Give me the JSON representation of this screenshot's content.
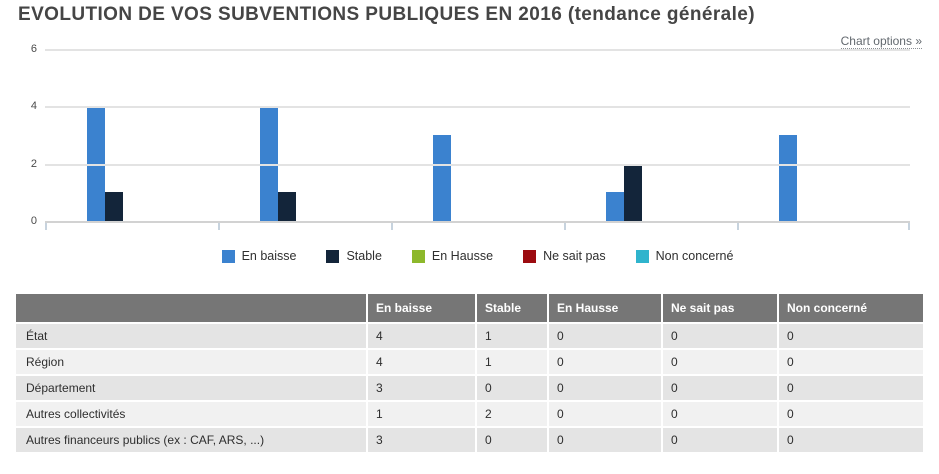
{
  "header": {
    "title": "EVOLUTION DE VOS SUBVENTIONS PUBLIQUES EN 2016 (tendance générale)",
    "chart_options_label": "Chart options »"
  },
  "colors": {
    "en_baisse": "#3b82cf",
    "stable": "#13253a",
    "en_hausse": "#8db82b",
    "ne_sait_pas": "#9c0b10",
    "non_concerne": "#2fb4cd",
    "table_header_bg": "#767676",
    "row_dark_bg": "#e4e4e4",
    "row_light_bg": "#f1f1f1"
  },
  "chart_data": {
    "type": "bar",
    "title": "EVOLUTION DE VOS SUBVENTIONS PUBLIQUES EN 2016 (tendance générale)",
    "categories": [
      "État",
      "Région",
      "Département",
      "Autres collectivités",
      "Autres financeurs publics (ex : CAF, ARS, ...)"
    ],
    "series": [
      {
        "name": "En baisse",
        "color": "#3b82cf",
        "values": [
          4,
          4,
          3,
          1,
          3
        ]
      },
      {
        "name": "Stable",
        "color": "#13253a",
        "values": [
          1,
          1,
          0,
          2,
          0
        ]
      },
      {
        "name": "En Hausse",
        "color": "#8db82b",
        "values": [
          0,
          0,
          0,
          0,
          0
        ]
      },
      {
        "name": "Ne sait pas",
        "color": "#9c0b10",
        "values": [
          0,
          0,
          0,
          0,
          0
        ]
      },
      {
        "name": "Non concerné",
        "color": "#2fb4cd",
        "values": [
          0,
          0,
          0,
          0,
          0
        ]
      }
    ],
    "ylim": [
      0,
      6
    ],
    "yticks": [
      0,
      2,
      4,
      6
    ],
    "grid": true,
    "legend_position": "bottom",
    "xlabel": "",
    "ylabel": ""
  },
  "table": {
    "columns": [
      "",
      "En baisse",
      "Stable",
      "En Hausse",
      "Ne sait pas",
      "Non concerné"
    ],
    "rows": [
      {
        "label": "État",
        "values": [
          4,
          1,
          0,
          0,
          0
        ]
      },
      {
        "label": "Région",
        "values": [
          4,
          1,
          0,
          0,
          0
        ]
      },
      {
        "label": "Département",
        "values": [
          3,
          0,
          0,
          0,
          0
        ]
      },
      {
        "label": "Autres collectivités",
        "values": [
          1,
          2,
          0,
          0,
          0
        ]
      },
      {
        "label": "Autres financeurs publics (ex : CAF, ARS, ...)",
        "values": [
          3,
          0,
          0,
          0,
          0
        ]
      }
    ]
  }
}
